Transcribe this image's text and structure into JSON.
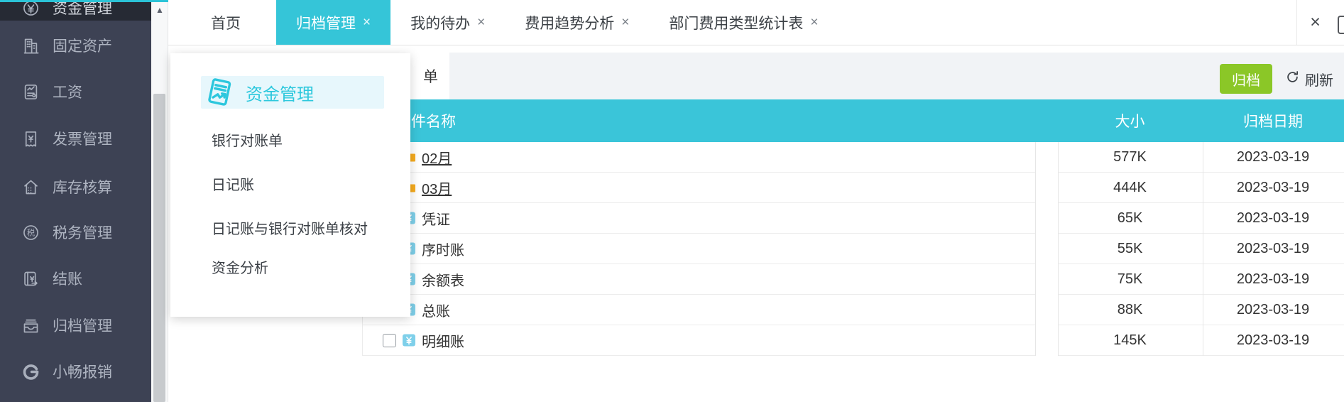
{
  "sidebar": {
    "items": [
      {
        "label": "资金管理",
        "icon": "fund-icon",
        "selected": true
      },
      {
        "label": "固定资产",
        "icon": "fixed-assets-icon"
      },
      {
        "label": "工资",
        "icon": "salary-icon"
      },
      {
        "label": "发票管理",
        "icon": "invoice-icon"
      },
      {
        "label": "库存核算",
        "icon": "inventory-icon"
      },
      {
        "label": "税务管理",
        "icon": "tax-icon"
      },
      {
        "label": "结账",
        "icon": "closing-icon"
      },
      {
        "label": "归档管理",
        "icon": "archive-icon"
      },
      {
        "label": "小畅报销",
        "icon": "xiaochang-icon"
      }
    ],
    "scroll_up_arrow": "▲"
  },
  "tabbar": {
    "tabs": [
      {
        "label": "首页",
        "closable": false,
        "active": false
      },
      {
        "label": "归档管理",
        "closable": true,
        "active": true
      },
      {
        "label": "我的待办",
        "closable": true,
        "active": false
      },
      {
        "label": "费用趋势分析",
        "closable": true,
        "active": false
      },
      {
        "label": "部门费用类型统计表",
        "closable": true,
        "active": false
      }
    ],
    "close_symbol": "×",
    "close_all_label": "×"
  },
  "toolbar": {
    "partial_tab": "单",
    "archive_label": "归档",
    "refresh_label": "刷新"
  },
  "menu": {
    "title": "资金管理",
    "items": [
      "银行对账单",
      "日记账",
      "日记账与银行对账单核对",
      "资金分析"
    ]
  },
  "table": {
    "columns": {
      "name": "文件名称",
      "size": "大小",
      "date": "归档日期"
    },
    "rows": [
      {
        "name": "02月",
        "type": "folder",
        "link": true,
        "size": "577K",
        "date": "2023-03-19"
      },
      {
        "name": "03月",
        "type": "folder",
        "link": true,
        "size": "444K",
        "date": "2023-03-19"
      },
      {
        "name": "凭证",
        "type": "file",
        "link": false,
        "size": "65K",
        "date": "2023-03-19"
      },
      {
        "name": "序时账",
        "type": "file",
        "link": false,
        "size": "55K",
        "date": "2023-03-19"
      },
      {
        "name": "余额表",
        "type": "file",
        "link": false,
        "size": "75K",
        "date": "2023-03-19"
      },
      {
        "name": "总账",
        "type": "file",
        "link": false,
        "size": "88K",
        "date": "2023-03-19"
      },
      {
        "name": "明细账",
        "type": "file",
        "link": false,
        "size": "145K",
        "date": "2023-03-19"
      }
    ]
  },
  "colors": {
    "accent_teal": "#35c5d8",
    "header_teal": "#3ac5d9",
    "sidebar_bg": "#3d4254",
    "sidebar_selected_bg": "#262a34",
    "button_green": "#8bc727",
    "folder_yellow": "#f6ac1f",
    "file_blue": "#7fd0ea",
    "menu_highlight_bg": "#e7f7fc",
    "toolbar_bg": "#f1f3f6"
  }
}
